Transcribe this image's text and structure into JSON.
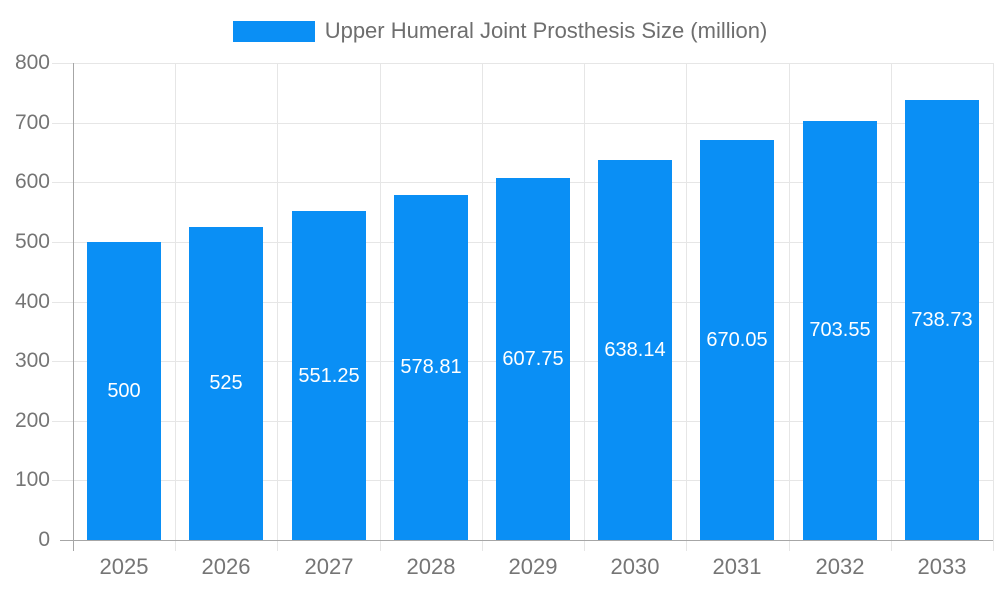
{
  "chart_data": {
    "type": "bar",
    "title": "Upper Humeral Joint Prosthesis Size (million)",
    "categories": [
      "2025",
      "2026",
      "2027",
      "2028",
      "2029",
      "2030",
      "2031",
      "2032",
      "2033"
    ],
    "values": [
      500,
      525,
      551.25,
      578.81,
      607.75,
      638.14,
      670.05,
      703.55,
      738.73
    ],
    "value_labels": [
      "500",
      "525",
      "551.25",
      "578.81",
      "607.75",
      "638.14",
      "670.05",
      "703.55",
      "738.73"
    ],
    "xlabel": "",
    "ylabel": "",
    "ylim": [
      0,
      800
    ],
    "y_ticks": [
      0,
      100,
      200,
      300,
      400,
      500,
      600,
      700,
      800
    ],
    "grid": true,
    "legend_position": "top",
    "colors": {
      "bar": "#0a8ff5",
      "bar_label": "#ffffff",
      "axis_line": "#a6a6a6",
      "gridline": "#e6e6e6",
      "tick_label": "#757575",
      "legend_text": "#6e6e6e",
      "background": "#ffffff"
    }
  }
}
